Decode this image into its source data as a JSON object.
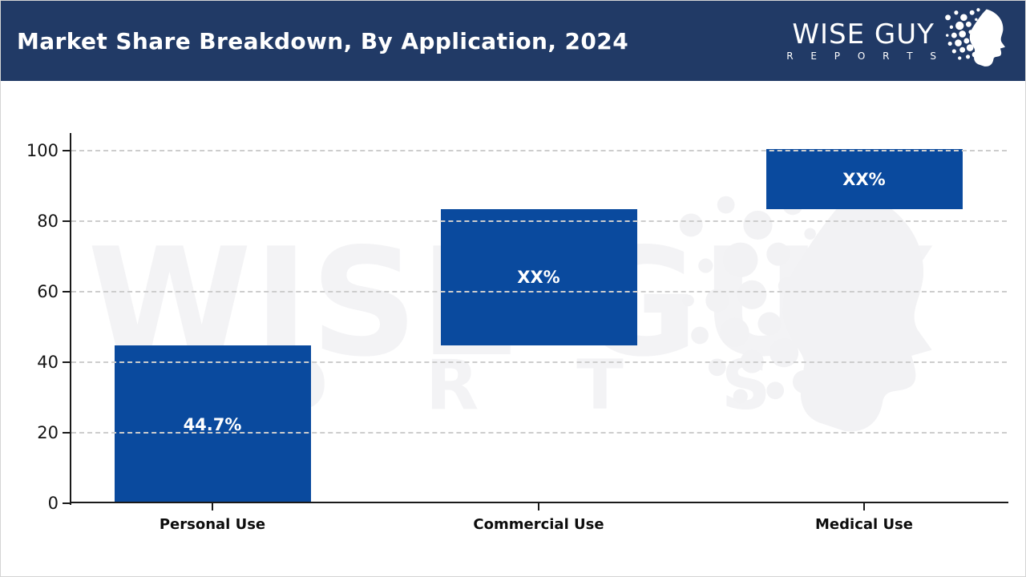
{
  "header": {
    "title": "Market Share Breakdown, By Application, 2024",
    "bg_color": "#213a66",
    "logo": {
      "line1": "WISE GUY",
      "line2": "R E P O R T S"
    }
  },
  "watermark": {
    "line1": "WISE GUY",
    "line2": "P O R T S"
  },
  "chart_data": {
    "type": "bar",
    "subtype": "waterfall",
    "title": "Market Share Breakdown, By Application, 2024",
    "categories": [
      "Personal Use",
      "Commercial Use",
      "Medical Use"
    ],
    "segments": [
      {
        "category": "Personal Use",
        "start": 0,
        "end": 44.7,
        "label": "44.7%"
      },
      {
        "category": "Commercial Use",
        "start": 44.7,
        "end": 83.4,
        "label": "XX%"
      },
      {
        "category": "Medical Use",
        "start": 83.4,
        "end": 100.4,
        "label": "XX%"
      }
    ],
    "yticks": [
      0,
      20,
      40,
      60,
      80,
      100
    ],
    "ylim": [
      0,
      105
    ],
    "grid": true,
    "legend": false,
    "bar_color": "#0a4a9e",
    "bar_label_color": "#ffffff",
    "gridline_color": "#cdcdcd",
    "axis_color": "#1a1a1a"
  }
}
